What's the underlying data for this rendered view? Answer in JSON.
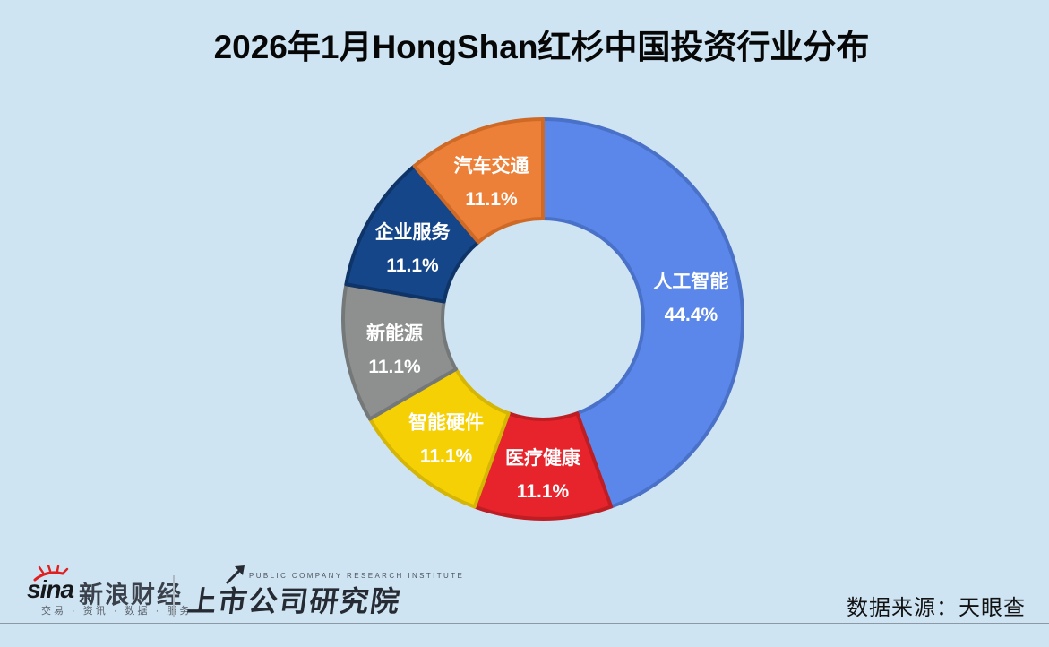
{
  "title": "2026年1月HongShan红杉中国投资行业分布",
  "chart_data": {
    "type": "pie",
    "title": "2026年1月HongShan红杉中国投资行业分布",
    "donut": true,
    "inner_radius_ratio": 0.5,
    "start_angle_deg": 0,
    "direction": "clockwise",
    "label_color": "#ffffff",
    "background_color": "#cfe4f3",
    "slices": [
      {
        "label": "人工智能",
        "value": 44.4,
        "pct_label": "44.4%",
        "color": "#5c87ea",
        "border": "#4a71c8"
      },
      {
        "label": "医疗健康",
        "value": 11.1,
        "pct_label": "11.1%",
        "color": "#e7232b",
        "border": "#bf1d24"
      },
      {
        "label": "智能硬件",
        "value": 11.1,
        "pct_label": "11.1%",
        "color": "#f5d004",
        "border": "#d5b506"
      },
      {
        "label": "新能源",
        "value": 11.1,
        "pct_label": "11.1%",
        "color": "#8e9090",
        "border": "#757878"
      },
      {
        "label": "企业服务",
        "value": 11.1,
        "pct_label": "11.1%",
        "color": "#16468a",
        "border": "#0f3568"
      },
      {
        "label": "汽车交通",
        "value": 11.1,
        "pct_label": "11.1%",
        "color": "#ed8038",
        "border": "#cf6a26"
      }
    ]
  },
  "footer": {
    "sina_word": "sina",
    "sina_brand": "新浪财经",
    "sina_tagline": "交易 · 资讯 · 数据 · 服务",
    "institute_en": "PUBLIC COMPANY RESEARCH INSTITUTE",
    "institute_cn": "上市公司研究院",
    "source": "数据来源：天眼查"
  }
}
